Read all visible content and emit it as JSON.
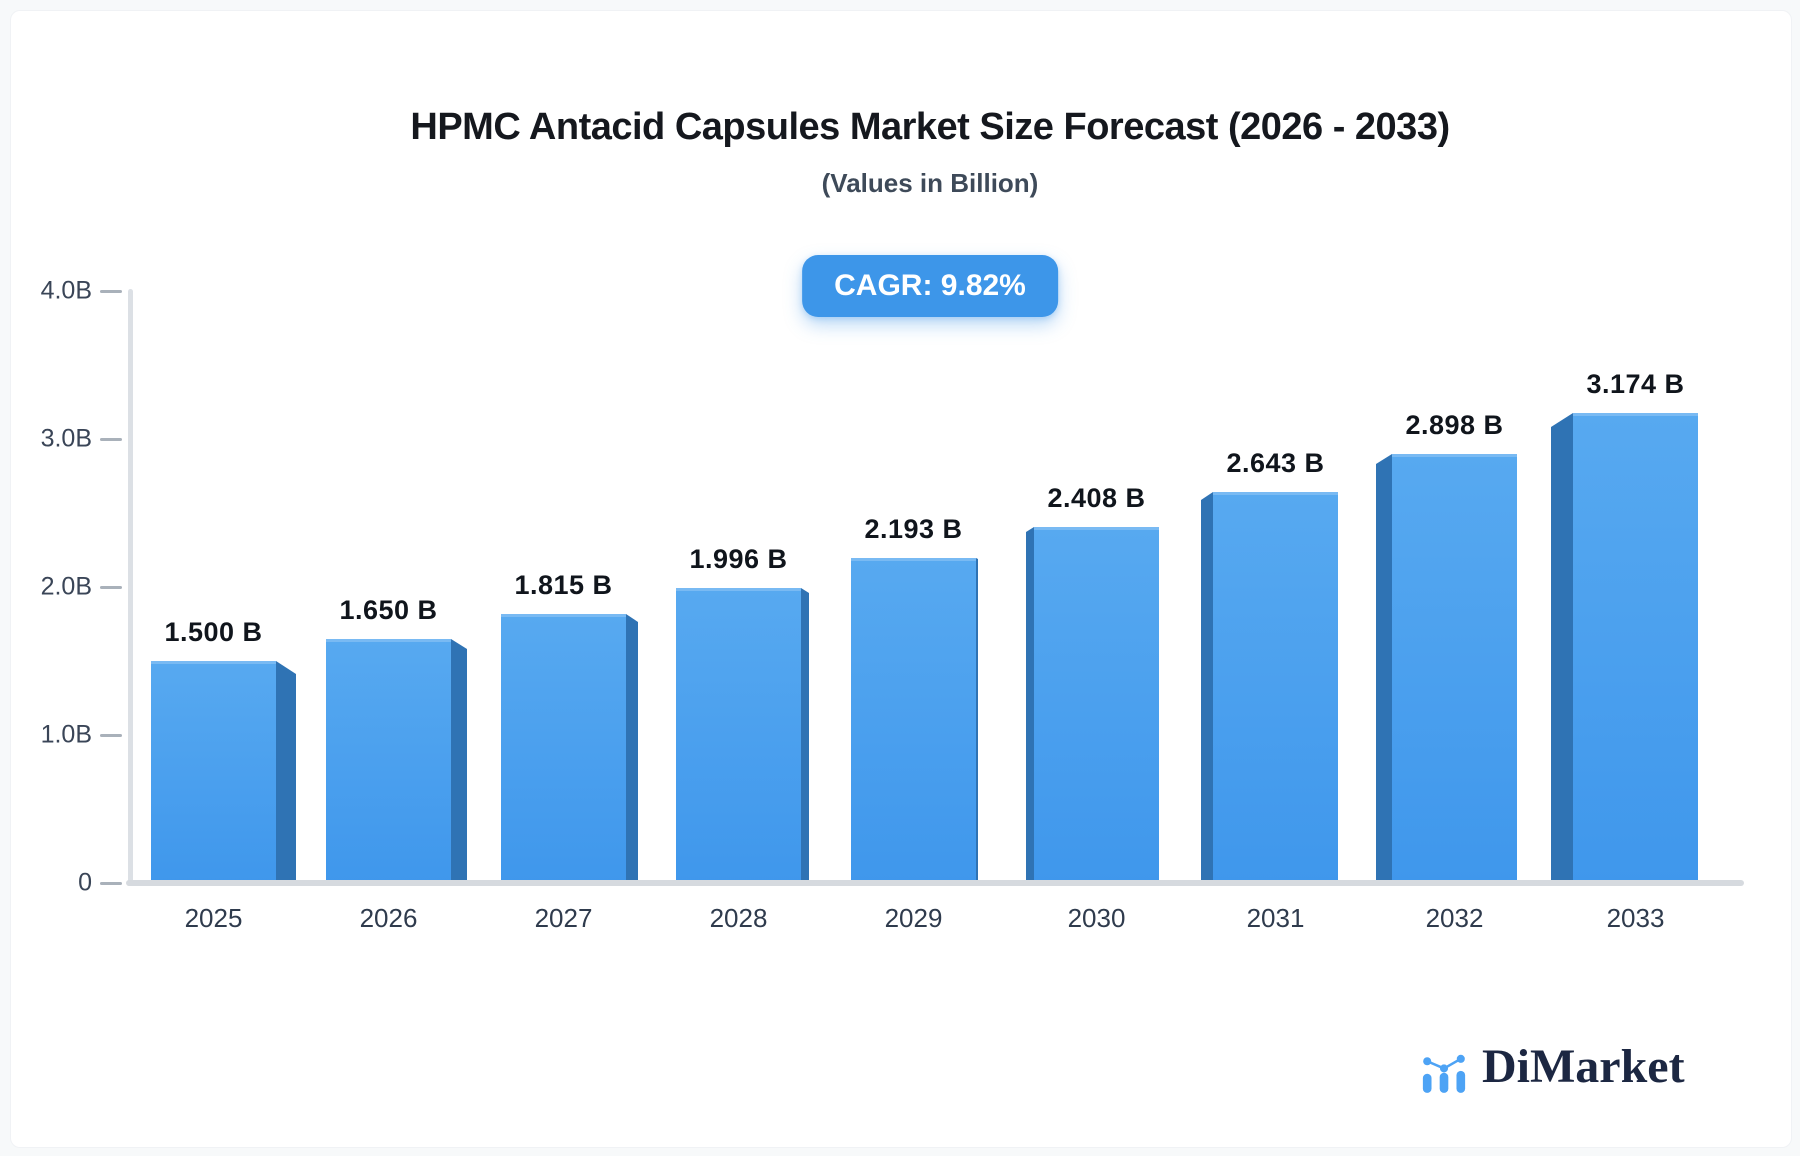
{
  "header": {
    "title": "HPMC Antacid Capsules Market Size Forecast (2026 - 2033)",
    "subtitle": "(Values in Billion)"
  },
  "badge": {
    "label": "CAGR: 9.82%"
  },
  "chart_data": {
    "type": "bar",
    "title": "HPMC Antacid Capsules Market Size Forecast (2026 - 2033)",
    "subtitle": "(Values in Billion)",
    "cagr_percent": 9.82,
    "unit": "Billion",
    "categories": [
      "2025",
      "2026",
      "2027",
      "2028",
      "2029",
      "2030",
      "2031",
      "2032",
      "2033"
    ],
    "values": [
      1.5,
      1.65,
      1.815,
      1.996,
      2.193,
      2.408,
      2.643,
      2.898,
      3.174
    ],
    "value_labels": [
      "1.500 B",
      "1.650 B",
      "1.815 B",
      "1.996 B",
      "2.193 B",
      "2.408 B",
      "2.643 B",
      "2.898 B",
      "3.174 B"
    ],
    "ytick_labels": [
      "4.0B",
      "3.0B",
      "2.0B",
      "1.0B",
      "0"
    ],
    "ytick_values": [
      4.0,
      3.0,
      2.0,
      1.0,
      0
    ],
    "ylim": [
      0,
      4.0
    ],
    "xlabel": "",
    "ylabel": "",
    "grid": "off",
    "legend": "none",
    "bar_style": "3d-blue"
  },
  "logo": {
    "text": "DiMarket",
    "icon": "bar-chart-logo-icon"
  },
  "colors": {
    "bar_face_top": "#57a9f0",
    "bar_face_bottom": "#3f97ec",
    "bar_top_edge": "#79baf3",
    "bar_side": "#2f73b4",
    "badge_bg": "#3d96e9",
    "badge_text": "#ffffff",
    "axis_line": "#dce0e5",
    "baseline": "#d6dadf",
    "tick_dash": "#a9b1ba",
    "title_text": "#15181e",
    "subtitle_text": "#3e4a59",
    "value_label_text": "#10151c",
    "axis_label_text": "#3a4557",
    "year_label_text": "#2f3b4d",
    "logo_navy": "#1c2742",
    "logo_blue": "#4da3f5"
  }
}
